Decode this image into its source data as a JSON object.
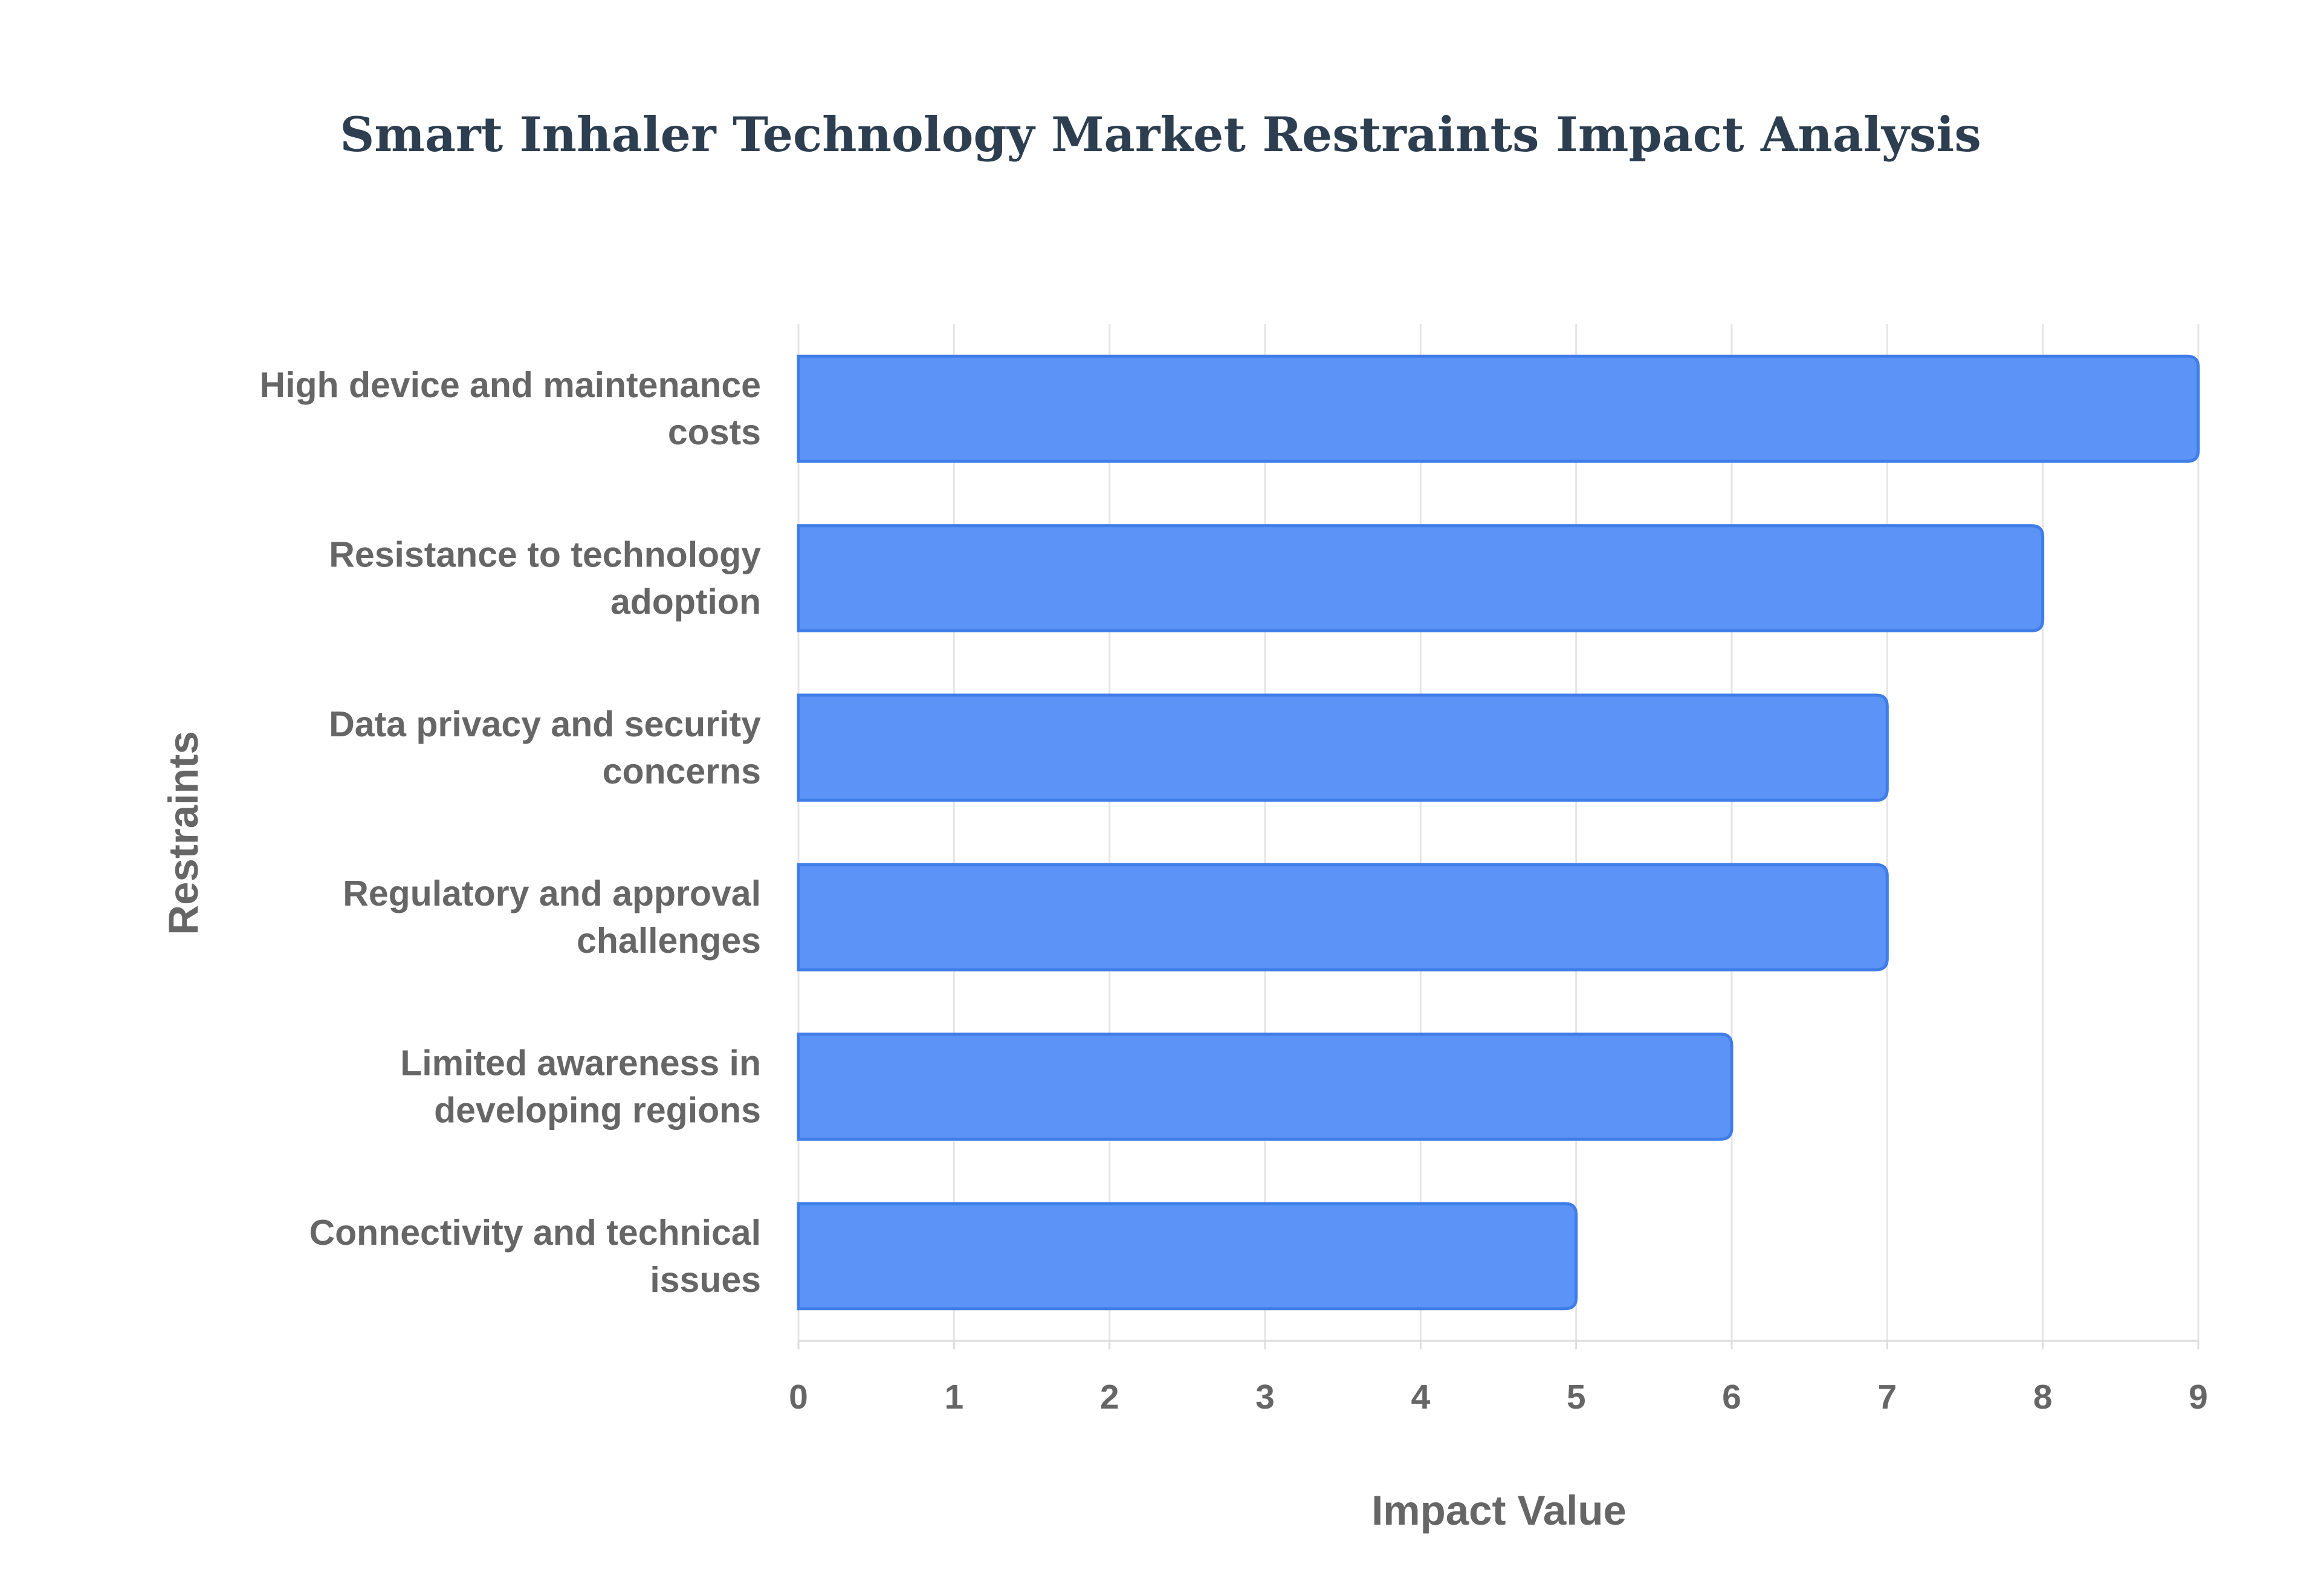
{
  "chart_data": {
    "type": "bar",
    "orientation": "horizontal",
    "title": "Smart Inhaler Technology Market Restraints Impact Analysis",
    "xlabel": "Impact Value",
    "ylabel": "Restraints",
    "categories": [
      [
        "High device and maintenance",
        "costs"
      ],
      [
        "Resistance to technology",
        "adoption"
      ],
      [
        "Data privacy and security",
        "concerns"
      ],
      [
        "Regulatory and approval",
        "challenges"
      ],
      [
        "Limited awareness in",
        "developing regions"
      ],
      [
        "Connectivity and technical",
        "issues"
      ]
    ],
    "values": [
      9,
      8,
      7,
      7,
      6,
      5
    ],
    "xlim": [
      0,
      9
    ],
    "xticks": [
      0,
      1,
      2,
      3,
      4,
      5,
      6,
      7,
      8,
      9
    ],
    "grid": true,
    "legend": "none",
    "colors": {
      "bar_fill": "#5b93f6",
      "bar_stroke": "#3f7de8",
      "grid": "#e5e5e5",
      "axis": "#dddddd",
      "title": "#2c3e50",
      "labels": "#666666"
    }
  }
}
